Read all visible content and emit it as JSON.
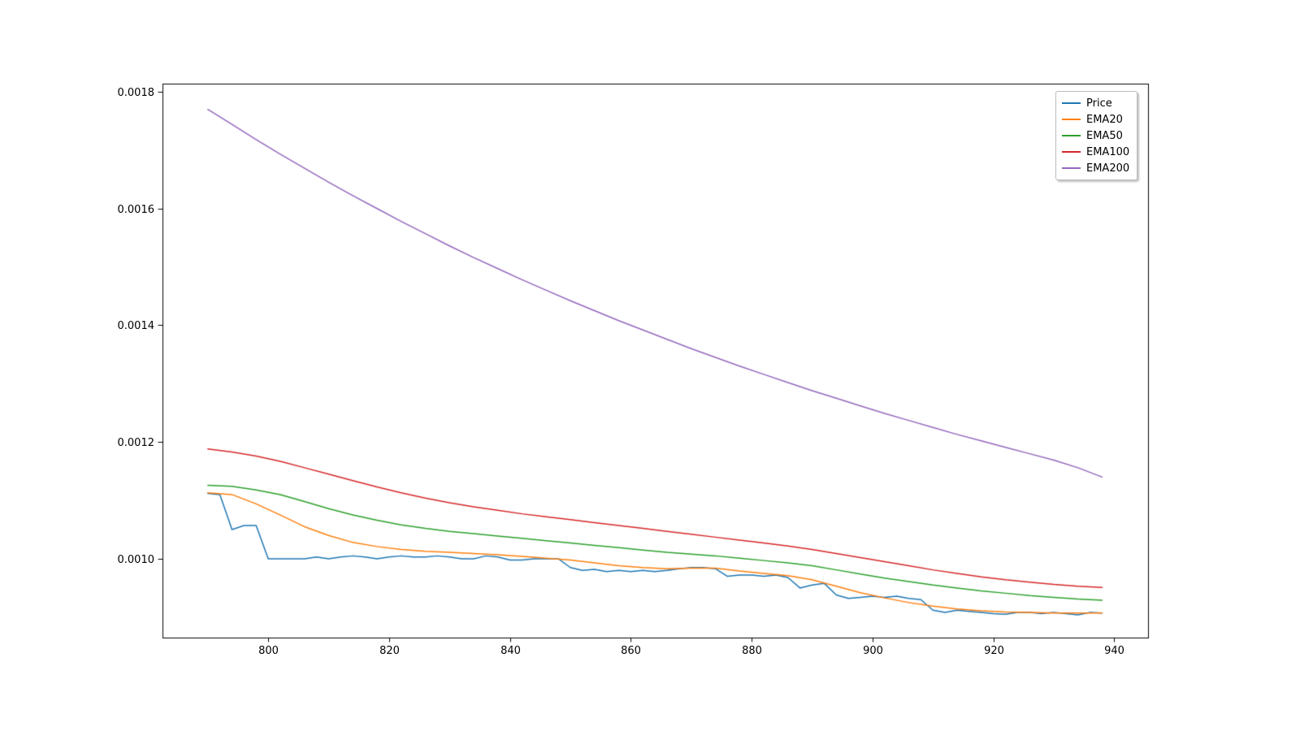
{
  "figure": {
    "background": "#ffffff",
    "axes_edge_color": "#000000"
  },
  "chart_data": {
    "type": "line",
    "title": "",
    "xlabel": "",
    "ylabel": "",
    "grid": false,
    "xlim": [
      782.5,
      945.6
    ],
    "ylim": [
      0.000865,
      0.0018139
    ],
    "xticks": [
      {
        "value": 800,
        "label": "800"
      },
      {
        "value": 820,
        "label": "820"
      },
      {
        "value": 840,
        "label": "840"
      },
      {
        "value": 860,
        "label": "860"
      },
      {
        "value": 880,
        "label": "880"
      },
      {
        "value": 900,
        "label": "900"
      },
      {
        "value": 920,
        "label": "920"
      },
      {
        "value": 940,
        "label": "940"
      }
    ],
    "yticks": [
      {
        "value": 0.001,
        "label": "0.0010"
      },
      {
        "value": 0.0012,
        "label": "0.0012"
      },
      {
        "value": 0.0014,
        "label": "0.0014"
      },
      {
        "value": 0.0016,
        "label": "0.0016"
      },
      {
        "value": 0.0018,
        "label": "0.0018"
      }
    ],
    "legend": {
      "position": "upper-right"
    },
    "series": [
      {
        "name": "Price",
        "color": "#1f77b4",
        "x": [
          790,
          792,
          794,
          796,
          798,
          800,
          802,
          804,
          806,
          808,
          810,
          812,
          814,
          816,
          818,
          820,
          822,
          824,
          826,
          828,
          830,
          832,
          834,
          836,
          838,
          840,
          842,
          844,
          846,
          848,
          850,
          852,
          854,
          856,
          858,
          860,
          862,
          864,
          866,
          868,
          870,
          872,
          874,
          876,
          878,
          880,
          882,
          884,
          886,
          888,
          890,
          892,
          894,
          896,
          898,
          900,
          902,
          904,
          906,
          908,
          910,
          912,
          914,
          916,
          918,
          920,
          922,
          924,
          926,
          928,
          930,
          932,
          934,
          936,
          938
        ],
        "y": [
          0.001112,
          0.00111,
          0.00105,
          0.001057,
          0.001057,
          0.001,
          0.001,
          0.001,
          0.001,
          0.001003,
          0.001,
          0.001003,
          0.001005,
          0.001003,
          0.001,
          0.001003,
          0.001005,
          0.001003,
          0.001003,
          0.001005,
          0.001003,
          0.001,
          0.001,
          0.001005,
          0.001003,
          0.000998,
          0.000998,
          0.001,
          0.001,
          0.001,
          0.000985,
          0.00098,
          0.000982,
          0.000978,
          0.00098,
          0.000978,
          0.00098,
          0.000978,
          0.00098,
          0.000983,
          0.000985,
          0.000985,
          0.000983,
          0.00097,
          0.000972,
          0.000972,
          0.00097,
          0.000972,
          0.000968,
          0.00095,
          0.000955,
          0.000958,
          0.000938,
          0.000932,
          0.000934,
          0.000936,
          0.000934,
          0.000936,
          0.000932,
          0.00093,
          0.000912,
          0.000908,
          0.000912,
          0.00091,
          0.000908,
          0.000906,
          0.000905,
          0.000908,
          0.000908,
          0.000906,
          0.000908,
          0.000906,
          0.000904,
          0.000908,
          0.000907
        ]
      },
      {
        "name": "EMA20",
        "color": "#ff7f0e",
        "x": [
          790,
          794,
          798,
          802,
          806,
          810,
          814,
          818,
          822,
          826,
          830,
          834,
          838,
          842,
          846,
          850,
          854,
          858,
          862,
          866,
          870,
          874,
          878,
          882,
          886,
          890,
          894,
          898,
          902,
          906,
          910,
          914,
          918,
          922,
          926,
          930,
          934,
          938
        ],
        "y": [
          0.001113,
          0.00111,
          0.001094,
          0.001075,
          0.001055,
          0.00104,
          0.001028,
          0.001021,
          0.001016,
          0.001013,
          0.001011,
          0.001009,
          0.001007,
          0.001004,
          0.001001,
          0.000998,
          0.000993,
          0.000988,
          0.000985,
          0.000983,
          0.000984,
          0.000984,
          0.000979,
          0.000975,
          0.000971,
          0.000964,
          0.000953,
          0.000942,
          0.000933,
          0.000925,
          0.000919,
          0.000914,
          0.000911,
          0.000909,
          0.000908,
          0.000907,
          0.000907,
          0.000907
        ]
      },
      {
        "name": "EMA50",
        "color": "#2ca02c",
        "x": [
          790,
          794,
          798,
          802,
          806,
          810,
          814,
          818,
          822,
          826,
          830,
          834,
          838,
          842,
          846,
          850,
          854,
          858,
          862,
          866,
          870,
          874,
          878,
          882,
          886,
          890,
          894,
          898,
          902,
          906,
          910,
          914,
          918,
          922,
          926,
          930,
          934,
          938
        ],
        "y": [
          0.001126,
          0.001124,
          0.001118,
          0.00111,
          0.001098,
          0.001086,
          0.001075,
          0.001066,
          0.001058,
          0.001052,
          0.001047,
          0.001043,
          0.001039,
          0.001035,
          0.001031,
          0.001027,
          0.001023,
          0.001019,
          0.001015,
          0.001011,
          0.001008,
          0.001005,
          0.001001,
          0.000997,
          0.000993,
          0.000988,
          0.000981,
          0.000974,
          0.000967,
          0.000961,
          0.000955,
          0.00095,
          0.000945,
          0.000941,
          0.000937,
          0.000934,
          0.000931,
          0.000929
        ]
      },
      {
        "name": "EMA100",
        "color": "#d62728",
        "x": [
          790,
          794,
          798,
          802,
          806,
          810,
          814,
          818,
          822,
          826,
          830,
          834,
          838,
          842,
          846,
          850,
          854,
          858,
          862,
          866,
          870,
          874,
          878,
          882,
          886,
          890,
          894,
          898,
          902,
          906,
          910,
          914,
          918,
          922,
          926,
          930,
          934,
          938
        ],
        "y": [
          0.001188,
          0.001183,
          0.001176,
          0.001167,
          0.001156,
          0.001145,
          0.001134,
          0.001123,
          0.001113,
          0.001104,
          0.001096,
          0.001089,
          0.001083,
          0.001077,
          0.001072,
          0.001067,
          0.001062,
          0.001057,
          0.001052,
          0.001047,
          0.001042,
          0.001037,
          0.001032,
          0.001027,
          0.001022,
          0.001016,
          0.001009,
          0.001002,
          0.000995,
          0.000988,
          0.000981,
          0.000975,
          0.000969,
          0.000964,
          0.00096,
          0.000956,
          0.000953,
          0.000951
        ]
      },
      {
        "name": "EMA200",
        "color": "#9467bd",
        "x": [
          790,
          794,
          798,
          802,
          806,
          810,
          814,
          818,
          822,
          826,
          830,
          834,
          838,
          842,
          846,
          850,
          854,
          858,
          862,
          866,
          870,
          874,
          878,
          882,
          886,
          890,
          894,
          898,
          902,
          906,
          910,
          914,
          918,
          922,
          926,
          930,
          934,
          938
        ],
        "y": [
          0.00177,
          0.001744,
          0.001718,
          0.001693,
          0.001669,
          0.001645,
          0.001622,
          0.0016,
          0.001578,
          0.001557,
          0.001536,
          0.001516,
          0.001497,
          0.001478,
          0.00146,
          0.001442,
          0.001425,
          0.001408,
          0.001392,
          0.001376,
          0.00136,
          0.001345,
          0.00133,
          0.001316,
          0.001302,
          0.001288,
          0.001275,
          0.001262,
          0.001249,
          0.001237,
          0.001225,
          0.001213,
          0.001202,
          0.001191,
          0.00118,
          0.001169,
          0.001156,
          0.00114
        ]
      }
    ]
  }
}
